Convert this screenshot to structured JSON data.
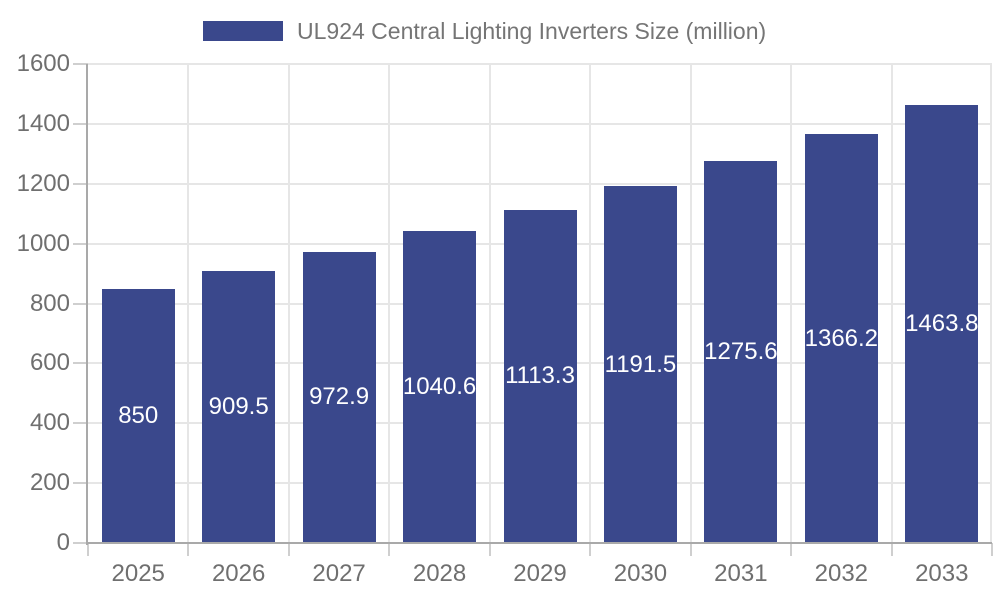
{
  "chart_data": {
    "type": "bar",
    "legend": {
      "label": "UL924 Central Lighting Inverters Size (million)",
      "position": "top"
    },
    "categories": [
      "2025",
      "2026",
      "2027",
      "2028",
      "2029",
      "2030",
      "2031",
      "2032",
      "2033"
    ],
    "series": [
      {
        "name": "UL924 Central Lighting Inverters Size (million)",
        "values": [
          850,
          909.5,
          972.9,
          1040.6,
          1113.3,
          1191.5,
          1275.6,
          1366.2,
          1463.8
        ],
        "value_labels": [
          "850",
          "909.5",
          "972.9",
          "1040.6",
          "1113.3",
          "1191.5",
          "1275.6",
          "1366.2",
          "1463.8"
        ]
      }
    ],
    "xlabel": "",
    "ylabel": "",
    "ylim": [
      0,
      1600
    ],
    "y_ticks": [
      0,
      200,
      400,
      600,
      800,
      1000,
      1200,
      1400,
      1600
    ],
    "grid": true,
    "colors": {
      "bar": "#3A488C",
      "value_label": "#FFFFFF",
      "tick_label": "#6F6F6F",
      "legend_text": "#757575",
      "axis_line": "#A9A9A9",
      "gridline": "#E6E6E6",
      "tick_mark": "#CFCFCF",
      "background": "#FFFFFF"
    }
  }
}
